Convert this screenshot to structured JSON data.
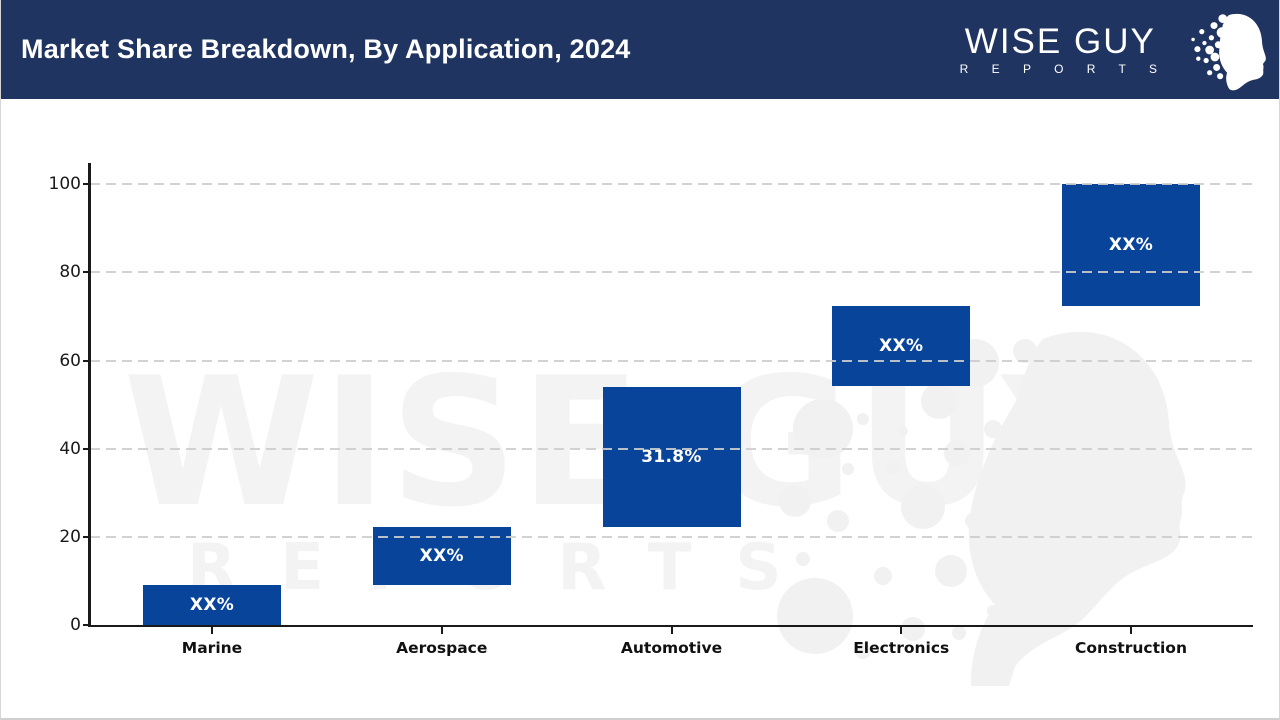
{
  "header": {
    "title": "Market Share Breakdown, By Application, 2024",
    "bg_color": "#1f3460",
    "logo": {
      "line1": "WISE GUY",
      "line2": "R E P O R T S"
    }
  },
  "watermark": {
    "line1": "WISE GUY",
    "line2": "REPORTS"
  },
  "chart_data": {
    "type": "bar",
    "subtype": "waterfall",
    "title": "Market Share Breakdown, By Application, 2024",
    "categories": [
      "Marine",
      "Aerospace",
      "Automotive",
      "Electronics",
      "Construction"
    ],
    "segments": [
      {
        "category": "Marine",
        "start": 0,
        "end": 9,
        "label": "XX%"
      },
      {
        "category": "Aerospace",
        "start": 9,
        "end": 22.3,
        "label": "XX%"
      },
      {
        "category": "Automotive",
        "start": 22.3,
        "end": 54.1,
        "label": "31.8%"
      },
      {
        "category": "Electronics",
        "start": 54.2,
        "end": 72.4,
        "label": "XX%"
      },
      {
        "category": "Construction",
        "start": 72.3,
        "end": 100,
        "label": "XX%"
      }
    ],
    "y_ticks": [
      0,
      20,
      40,
      60,
      80,
      100
    ],
    "ylim": [
      0,
      105
    ],
    "grid": "horizontal-dashed",
    "legend": "none",
    "xlabel": "",
    "ylabel": "",
    "bar_color": "#09449b",
    "bar_label_color": "#ffffff",
    "axis_color": "#1a1a1a"
  }
}
